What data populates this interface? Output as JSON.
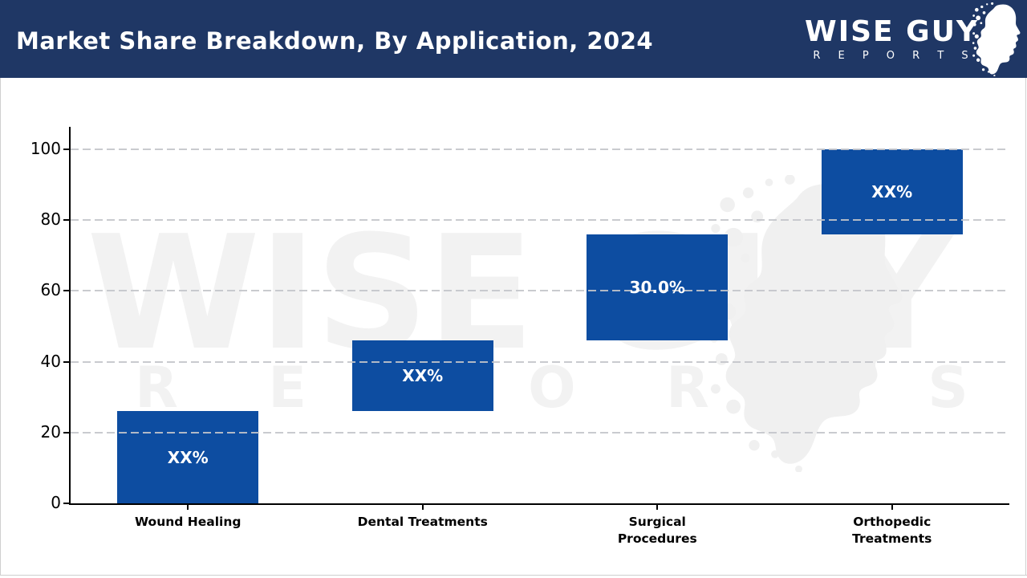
{
  "header": {
    "title": "Market Share Breakdown, By Application, 2024",
    "logo": {
      "line1": "WISE GUY",
      "line2": "R E P O R T S"
    }
  },
  "watermark": {
    "line1": "WISE GUY",
    "line2": "R E P O R T S"
  },
  "colors": {
    "header_bg": "#1f3765",
    "bar": "#0d4da1",
    "title_text": "#ffffff",
    "bar_label_text": "#ffffff",
    "axis": "#000000",
    "tick_label_text": "#000000",
    "grid": "#cccccc",
    "watermark": "#f2f2f2"
  },
  "chart_data": {
    "type": "bar",
    "subtype": "floating-waterfall",
    "title": "Market Share Breakdown, By Application, 2024",
    "xlabel": "",
    "ylabel": "",
    "ylim": [
      0,
      100
    ],
    "yticks": [
      0,
      20,
      40,
      60,
      80,
      100
    ],
    "grid": "horizontal-dashed",
    "legend": "none",
    "bar_color": "#0d4da1",
    "categories": [
      "Wound Healing",
      "Dental Treatments",
      "Surgical Procedures",
      "Orthopedic Treatments"
    ],
    "category_lines": [
      [
        "Wound Healing"
      ],
      [
        "Dental Treatments"
      ],
      [
        "Surgical",
        "Procedures"
      ],
      [
        "Orthopedic",
        "Treatments"
      ]
    ],
    "bars": [
      {
        "category": "Wound Healing",
        "start": 0,
        "end": 26,
        "value": 26,
        "label": "XX%"
      },
      {
        "category": "Dental Treatments",
        "start": 26,
        "end": 46,
        "value": 20,
        "label": "XX%"
      },
      {
        "category": "Surgical Procedures",
        "start": 46,
        "end": 76,
        "value": 30,
        "label": "30.0%"
      },
      {
        "category": "Orthopedic Treatments",
        "start": 76,
        "end": 100,
        "value": 24,
        "label": "XX%"
      }
    ]
  }
}
